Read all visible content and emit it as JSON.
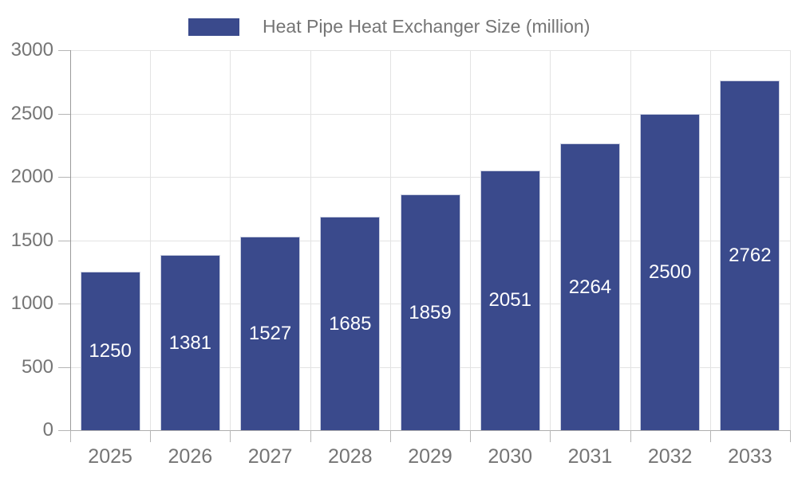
{
  "legend": {
    "label": "Heat Pipe Heat Exchanger Size (million)",
    "swatch_color": "#3A4A8C"
  },
  "chart_data": {
    "type": "bar",
    "title": "Heat Pipe Heat Exchanger Size (million)",
    "categories": [
      "2025",
      "2026",
      "2027",
      "2028",
      "2029",
      "2030",
      "2031",
      "2032",
      "2033"
    ],
    "series": [
      {
        "name": "Heat Pipe Heat Exchanger Size (million)",
        "values": [
          1250,
          1381,
          1527,
          1685,
          1859,
          2051,
          2264,
          2500,
          2762
        ]
      }
    ],
    "value_labels": [
      "1250",
      "1381",
      "1527",
      "1685",
      "1859",
      "2051",
      "2264",
      "2500",
      "2762"
    ],
    "value_label_position": "center-of-bar",
    "xlabel": "",
    "ylabel": "",
    "ylim": [
      0,
      3000
    ],
    "yticks": [
      0,
      500,
      1000,
      1500,
      2000,
      2500,
      3000
    ],
    "grid": true,
    "legend_position": "top-center",
    "colors": {
      "bar": "#3A4A8C",
      "bar_border": "#CDD2E2",
      "value_label_text": "#FFFFFF",
      "axis_text": "#757575",
      "grid_line": "#E3E3E3",
      "axis_line": "#9A9A9A",
      "background": "#FFFFFF"
    }
  }
}
